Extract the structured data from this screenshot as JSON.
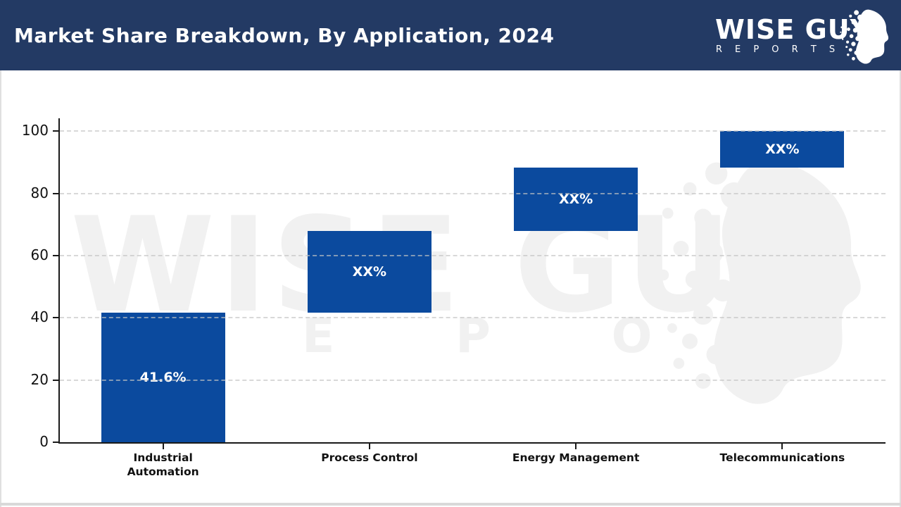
{
  "header": {
    "title": "Market Share Breakdown, By Application, 2024",
    "logo": {
      "name": "WISE GUY",
      "subtitle": "R E P O R T S"
    }
  },
  "watermark": {
    "line1": "WISE GUY",
    "line2": "R E P O R T S"
  },
  "chart_data": {
    "type": "bar",
    "subtype": "waterfall-stacked-percentage",
    "title": "Market Share Breakdown, By Application, 2024",
    "categories": [
      "Industrial Automation",
      "Process Control",
      "Energy Management",
      "Telecommunications"
    ],
    "bars": [
      {
        "category_lines": [
          "Industrial",
          "Automation"
        ],
        "start": 0,
        "end": 41.6,
        "label": "41.6%"
      },
      {
        "category_lines": [
          "Process Control"
        ],
        "start": 41.6,
        "end": 68.0,
        "label": "XX%"
      },
      {
        "category_lines": [
          "Energy Management"
        ],
        "start": 68.0,
        "end": 88.3,
        "label": "XX%"
      },
      {
        "category_lines": [
          "Telecommunications"
        ],
        "start": 88.3,
        "end": 100,
        "label": "XX%"
      }
    ],
    "yticks": [
      0,
      20,
      40,
      60,
      80,
      100
    ],
    "ylim": [
      0,
      104
    ],
    "grid": "horizontal-dashed",
    "legend": "none",
    "colors": {
      "bar": "#0b4a9e",
      "header_bg": "#233a64",
      "axis": "#1a1a1a",
      "grid": "#c8c8c8",
      "bar_label_text": "#ffffff",
      "watermark": "#f1f1f1"
    }
  }
}
